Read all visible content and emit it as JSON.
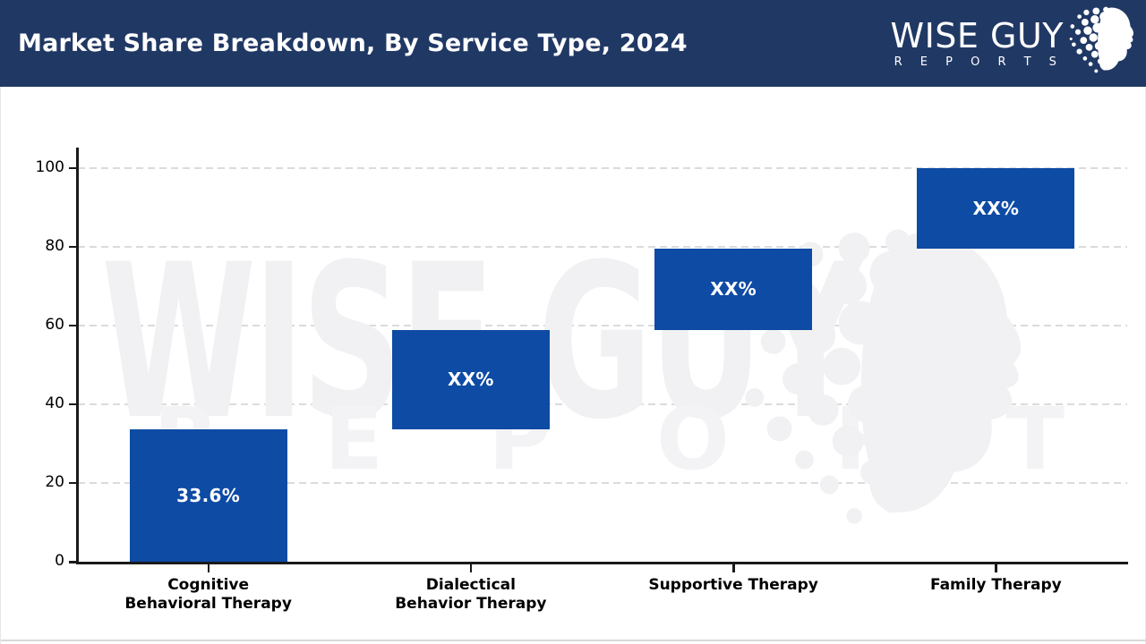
{
  "header": {
    "title": "Market Share Breakdown, By Service Type, 2024",
    "logo": {
      "wordmark": "WISE GUY",
      "subtext": "R E P O R T S"
    }
  },
  "watermark": {
    "wordmark": "WISE GUY",
    "subtext": "R E P O R T S"
  },
  "chart_data": {
    "type": "bar",
    "subtype": "waterfall",
    "title": "Market Share Breakdown, By Service Type, 2024",
    "categories": [
      [
        "Cognitive",
        "Behavioral Therapy"
      ],
      [
        "Dialectical",
        "Behavior Therapy"
      ],
      [
        "Supportive Therapy"
      ],
      [
        "Family Therapy"
      ]
    ],
    "series": [
      {
        "category": "Cognitive Behavioral Therapy",
        "start": 0,
        "end": 33.6,
        "label": "33.6%"
      },
      {
        "category": "Dialectical Behavior Therapy",
        "start": 33.6,
        "end": 58.8,
        "label": "XX%"
      },
      {
        "category": "Supportive Therapy",
        "start": 58.8,
        "end": 79.5,
        "label": "XX%"
      },
      {
        "category": "Family Therapy",
        "start": 79.5,
        "end": 100,
        "label": "XX%"
      }
    ],
    "y_ticks": [
      0,
      20,
      40,
      60,
      80,
      100
    ],
    "ylim": [
      0,
      105
    ],
    "xlabel": "",
    "ylabel": "",
    "grid": "horizontal-dashed",
    "legend": "none",
    "bar_color": "#0d4ba4",
    "bar_label_color": "#ffffff"
  },
  "colors": {
    "header_bg": "#203864",
    "bar": "#0d4ba4",
    "grid": "#dbdbdb",
    "axis": "#1a1a1a",
    "watermark": "#f1f1f3"
  }
}
